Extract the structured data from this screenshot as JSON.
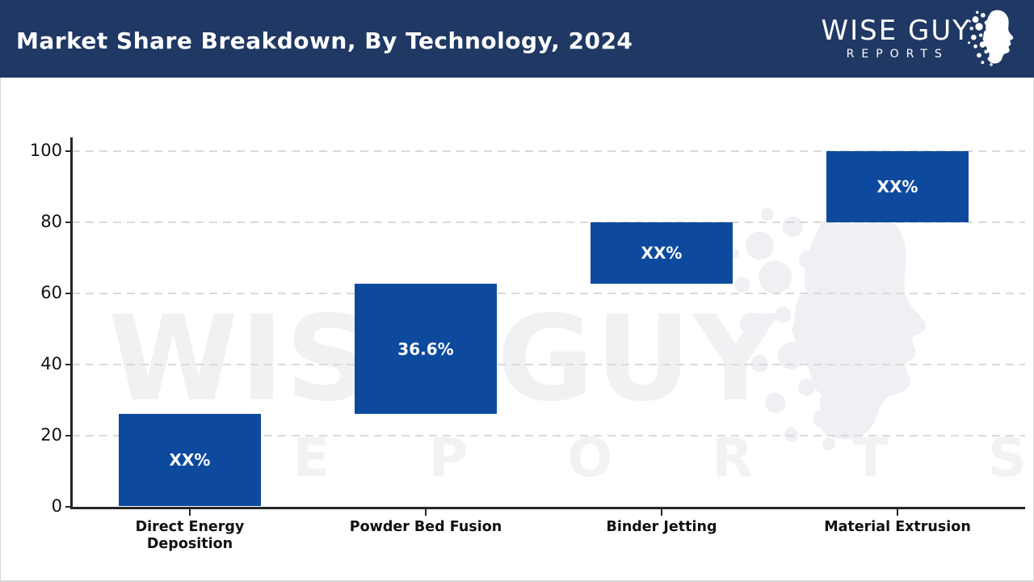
{
  "header": {
    "title": "Market Share Breakdown, By Technology, 2024",
    "bg_color": "#1f3864",
    "logo": {
      "line1": "WISE GUY",
      "line2": "REPORTS"
    }
  },
  "watermark": {
    "line1": "WISE GUY",
    "line2": "R E P O R T S"
  },
  "chart_data": {
    "type": "bar",
    "subtype": "waterfall-floating-bars",
    "title": "Market Share Breakdown, By Technology, 2024",
    "xlabel": "",
    "ylabel": "",
    "ylim": [
      0,
      100
    ],
    "yticks": [
      0,
      20,
      40,
      60,
      80,
      100
    ],
    "grid": "horizontal-dashed",
    "legend": "none",
    "categories": [
      "Direct Energy Deposition",
      "Powder Bed Fusion",
      "Binder Jetting",
      "Material Extrusion"
    ],
    "segments": [
      {
        "category": "Direct Energy Deposition",
        "start": 0,
        "end": 26,
        "height": 26,
        "label": "XX%"
      },
      {
        "category": "Powder Bed Fusion",
        "start": 26,
        "end": 62.6,
        "height": 36.6,
        "label": "36.6%"
      },
      {
        "category": "Binder Jetting",
        "start": 62.6,
        "end": 80,
        "height": 17.4,
        "label": "XX%"
      },
      {
        "category": "Material Extrusion",
        "start": 80,
        "end": 100,
        "height": 20,
        "label": "XX%"
      }
    ],
    "colors": {
      "bar": "#0d4a9e",
      "bar_label": "#ffffff",
      "axis": "#262626",
      "gridline": "#dadada",
      "tick_label": "#111111",
      "header_bg": "#1f3864",
      "watermark": "#f1f1f4"
    }
  }
}
